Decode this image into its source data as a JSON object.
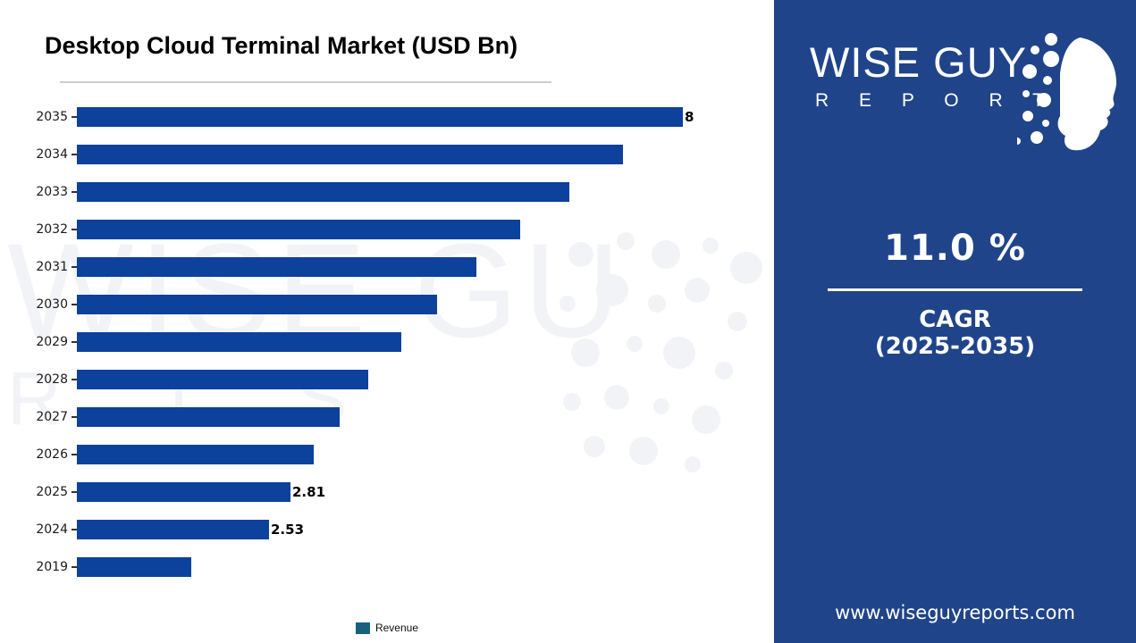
{
  "chart": {
    "title": "Desktop Cloud Terminal Market (USD Bn)",
    "bar_color": "#0c419c",
    "legend": {
      "label": "Revenue",
      "swatch_color": "#17617f"
    },
    "watermark": {
      "line1": "WISE GU",
      "line2": "R T S"
    }
  },
  "chart_data": {
    "type": "bar",
    "orientation": "horizontal",
    "title": "Desktop Cloud Terminal Market (USD Bn)",
    "series_name": "Revenue",
    "categories": [
      "2035",
      "2034",
      "2033",
      "2032",
      "2031",
      "2030",
      "2029",
      "2028",
      "2027",
      "2026",
      "2025",
      "2024",
      "2019"
    ],
    "values": [
      7.98,
      7.19,
      6.48,
      5.84,
      5.26,
      4.74,
      4.27,
      3.84,
      3.46,
      3.12,
      2.81,
      2.53,
      1.5
    ],
    "value_labels": {
      "2035": "8",
      "2025": "2.81",
      "2024": "2.53"
    },
    "xlim": [
      0,
      8.2
    ],
    "xlabel": "",
    "ylabel": "",
    "grid": false,
    "legend_position": "bottom-center"
  },
  "sidebar": {
    "background_color": "#20448a",
    "brand_line1": "WISE GUY",
    "brand_line2": "R E P O R T S",
    "cagr_value": "11.0 %",
    "cagr_label_line1": "CAGR",
    "cagr_label_line2": "(2025-2035)",
    "website": "www.wiseguyreports.com"
  }
}
